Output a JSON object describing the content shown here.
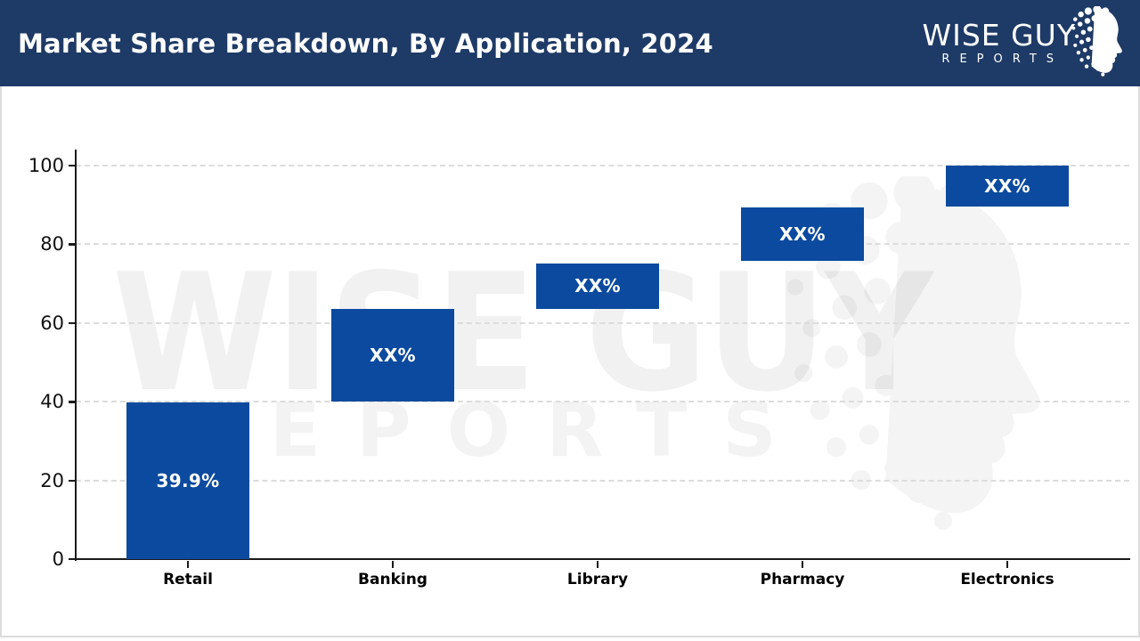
{
  "header": {
    "title": "Market Share Breakdown, By Application, 2024",
    "background_color": "#1e3a66",
    "logo": {
      "name": "WISE GUY",
      "sub": "REPORTS"
    }
  },
  "watermark": {
    "line1": "WISE GUY",
    "line2": "REPORTS"
  },
  "chart_data": {
    "type": "bar",
    "variant": "waterfall",
    "title": "Market Share Breakdown, By Application, 2024",
    "categories": [
      "Retail",
      "Banking",
      "Library",
      "Pharmacy",
      "Electronics"
    ],
    "bars": [
      {
        "category": "Retail",
        "start": 0,
        "end": 39.9,
        "label": "39.9%"
      },
      {
        "category": "Banking",
        "start": 40.0,
        "end": 63.5,
        "label": "XX%"
      },
      {
        "category": "Library",
        "start": 63.5,
        "end": 75.2,
        "label": "XX%"
      },
      {
        "category": "Pharmacy",
        "start": 75.7,
        "end": 89.3,
        "label": "XX%"
      },
      {
        "category": "Electronics",
        "start": 89.6,
        "end": 100.0,
        "label": "XX%"
      }
    ],
    "yticks": [
      0,
      20,
      40,
      60,
      80,
      100
    ],
    "ylim": [
      0,
      104.5
    ],
    "xlabel": "",
    "ylabel": "",
    "grid": "horizontal-dashed",
    "legend_position": "none",
    "bar_color": "#0b4a9e",
    "bar_label_color": "#ffffff",
    "axis_color": "#1a1a1a"
  }
}
